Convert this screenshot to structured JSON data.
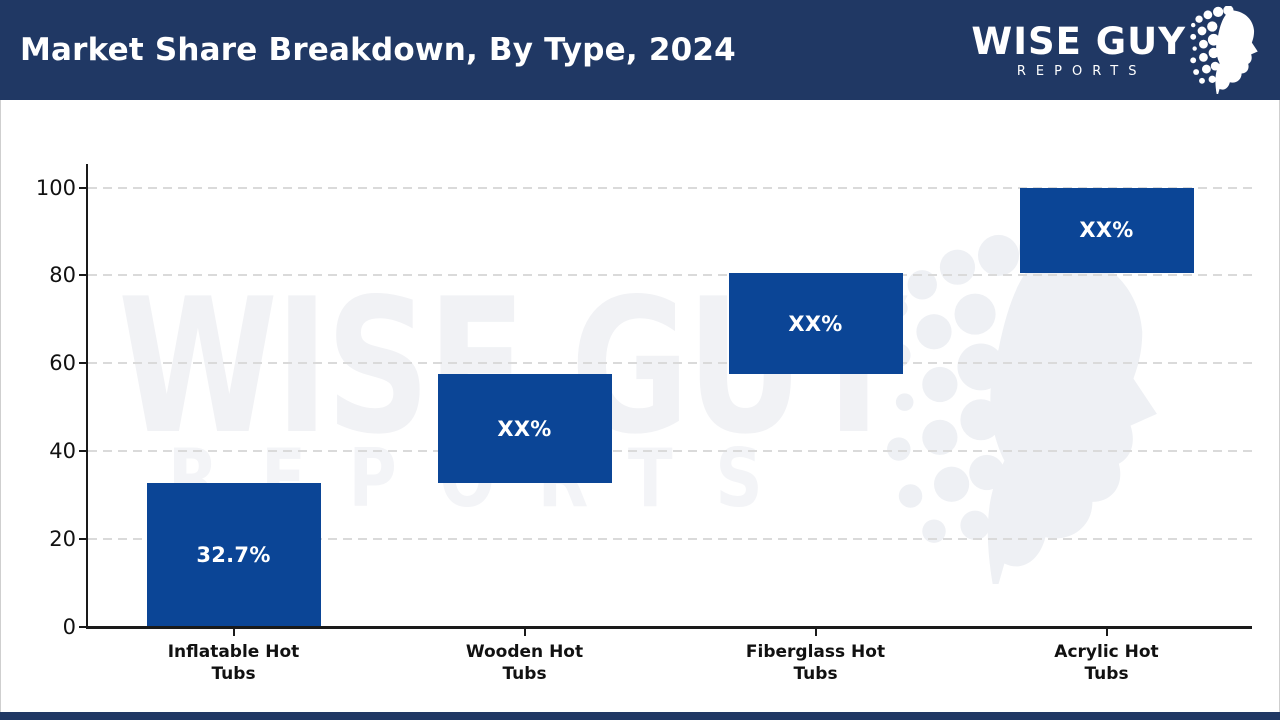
{
  "header": {
    "title": "Market Share Breakdown, By Type, 2024",
    "logo": {
      "line1": "WISE GUY",
      "line2": "REPORTS"
    }
  },
  "watermark": {
    "line1": "WISE GUY",
    "line2": "REPORTS"
  },
  "footer": {},
  "colors": {
    "header_navy": "#203864",
    "bar_blue": "#0b4596",
    "axis": "#1a1a1a",
    "gridline": "#dadada",
    "watermark_gray": "#f1f2f5"
  },
  "chart_data": {
    "type": "bar",
    "subtype": "waterfall-floating-bars",
    "title": "Market Share Breakdown, By Type, 2024",
    "categories": [
      "Inflatable Hot Tubs",
      "Wooden Hot Tubs",
      "Fiberglass Hot Tubs",
      "Acrylic Hot Tubs"
    ],
    "bars": [
      {
        "category": "Inflatable Hot Tubs",
        "start": 0,
        "end": 32.7,
        "label": "32.7%"
      },
      {
        "category": "Wooden Hot Tubs",
        "start": 32.7,
        "end": 57.5,
        "label": "XX%"
      },
      {
        "category": "Fiberglass Hot Tubs",
        "start": 57.5,
        "end": 80.5,
        "label": "XX%"
      },
      {
        "category": "Acrylic Hot Tubs",
        "start": 80.5,
        "end": 100,
        "label": "XX%"
      }
    ],
    "xlabel": "",
    "ylabel": "",
    "ylim": [
      0,
      100
    ],
    "yticks": [
      0,
      20,
      40,
      60,
      80,
      100
    ],
    "grid": "horizontal-dashed",
    "legend": "none",
    "bar_color": "#0b4596",
    "bar_label_color": "#ffffff"
  }
}
